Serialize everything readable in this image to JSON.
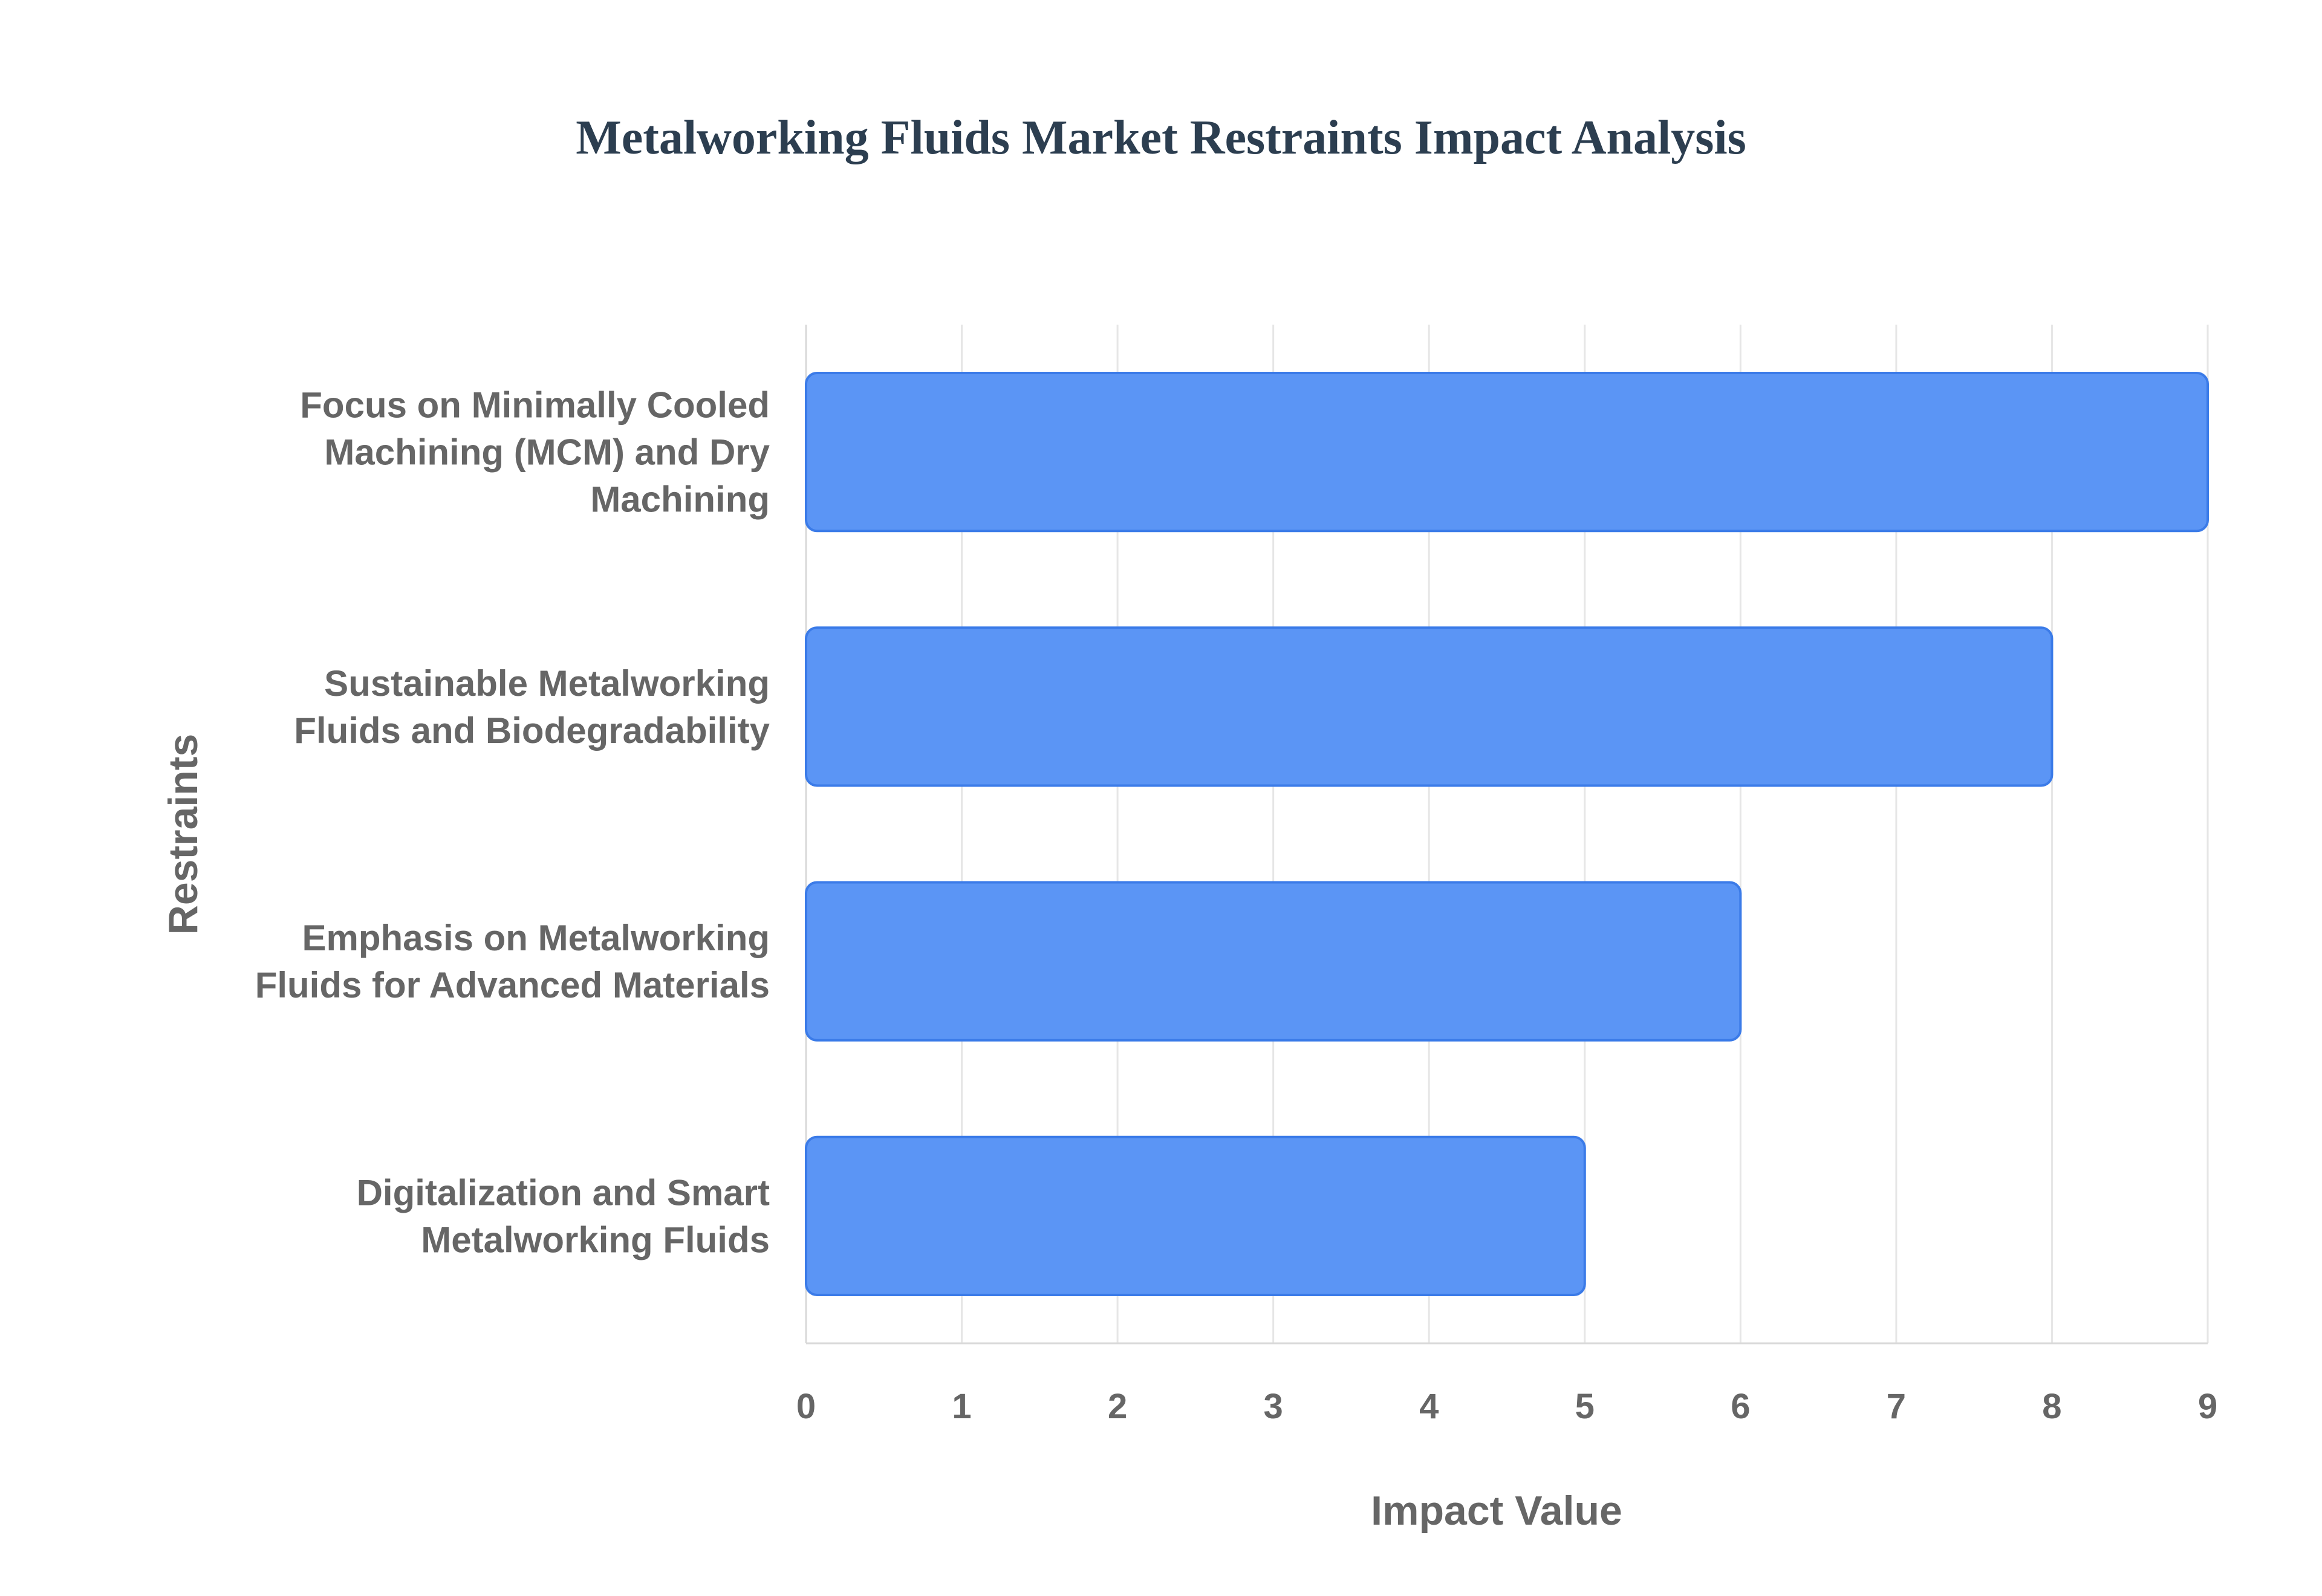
{
  "chart_data": {
    "type": "bar",
    "orientation": "horizontal",
    "title": "Metalworking Fluids Market Restraints Impact Analysis",
    "xlabel": "Impact Value",
    "ylabel": "Restraints",
    "categories": [
      [
        "Focus on Minimally Cooled",
        "Machining (MCM) and Dry",
        "Machining"
      ],
      [
        "Sustainable Metalworking",
        "Fluids and Biodegradability"
      ],
      [
        "Emphasis on Metalworking",
        "Fluids for Advanced Materials"
      ],
      [
        "Digitalization and Smart",
        "Metalworking Fluids"
      ]
    ],
    "values": [
      9,
      8,
      6,
      5
    ],
    "xlim": [
      0,
      9
    ],
    "xticks": [
      "0",
      "1",
      "2",
      "3",
      "4",
      "5",
      "6",
      "7",
      "8",
      "9"
    ],
    "grid": true,
    "bar_color": "#5b95f5",
    "bar_border_color": "#3b7be8"
  }
}
